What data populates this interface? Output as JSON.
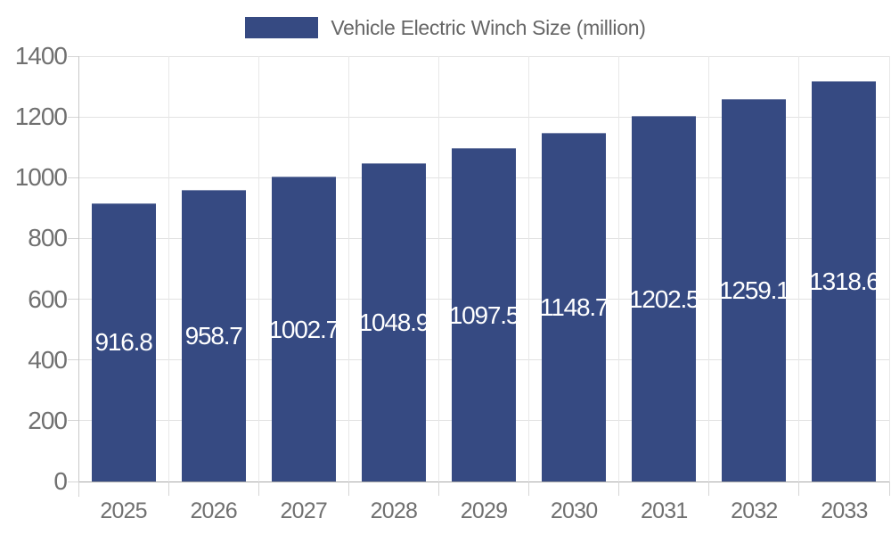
{
  "chart_data": {
    "type": "bar",
    "title": "Vehicle Electric Winch Size (million)",
    "legend": {
      "label": "Vehicle Electric Winch Size (million)",
      "position": "top"
    },
    "categories": [
      "2025",
      "2026",
      "2027",
      "2028",
      "2029",
      "2030",
      "2031",
      "2032",
      "2033"
    ],
    "series": [
      {
        "name": "Vehicle Electric Winch Size (million)",
        "values": [
          916.8,
          958.7,
          1002.7,
          1048.9,
          1097.5,
          1148.7,
          1202.5,
          1259.1,
          1318.6
        ]
      }
    ],
    "value_labels": [
      "916.8",
      "958.7",
      "1002.7",
      "1048.9",
      "1097.5",
      "1148.7",
      "1202.5",
      "1259.1",
      "1318.6"
    ],
    "xlabel": "",
    "ylabel": "",
    "ylim": [
      0,
      1400
    ],
    "ytick_interval": 200,
    "ytick_labels": [
      "0",
      "200",
      "400",
      "600",
      "800",
      "1000",
      "1200",
      "1400"
    ],
    "grid": true,
    "colors": {
      "bar": "#364A82",
      "bar_top_edge": "rgba(255,255,255,0.35)",
      "value_label": "#FFFFFF",
      "grid_h": "#E2E2E2",
      "grid_v": "#E8E8E8",
      "y_axis_line": "#C8C8C8",
      "x_axis_line": "#A9A9A9",
      "tick": "#D5D5D5",
      "axis_label": "#707070",
      "legend_text": "#666666",
      "background": "#FFFFFF"
    }
  }
}
